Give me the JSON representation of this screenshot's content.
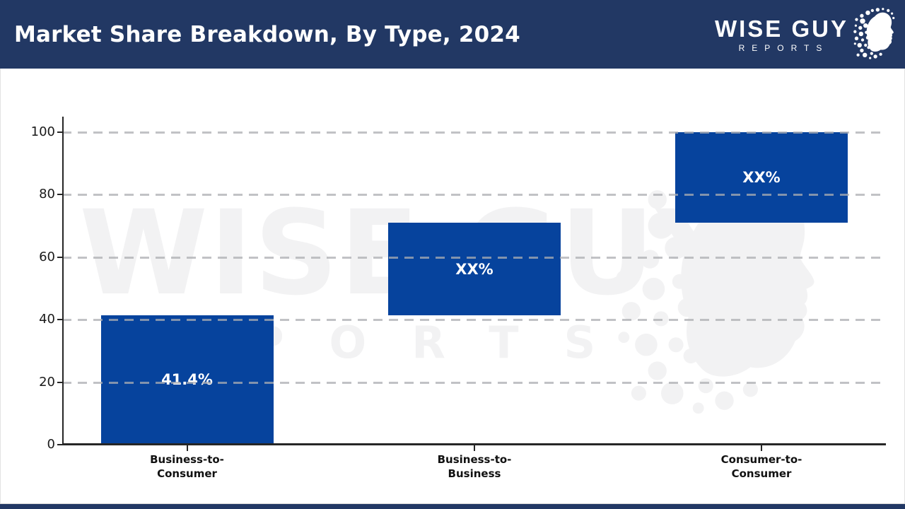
{
  "header": {
    "title": "Market Share Breakdown, By Type, 2024",
    "bg_color": "#223864",
    "logo": {
      "brand": "WISE GUY",
      "sub": "REPORTS"
    }
  },
  "watermark": {
    "brand": "WISE GUY",
    "sub": "REPORTS"
  },
  "chart_data": {
    "type": "bar",
    "variant": "waterfall-floating-segments",
    "title": "Market Share Breakdown, By Type, 2024",
    "categories": [
      "Business-to-Consumer",
      "Business-to-Business",
      "Consumer-to-Consumer"
    ],
    "category_label_lines": [
      [
        "Business-to-",
        "Consumer"
      ],
      [
        "Business-to-",
        "Business"
      ],
      [
        "Consumer-to-",
        "Consumer"
      ]
    ],
    "segments": [
      {
        "category": "Business-to-Consumer",
        "start": 0,
        "end": 41.4,
        "label": "41.4%"
      },
      {
        "category": "Business-to-Business",
        "start": 41.4,
        "end": 71,
        "label": "XX%"
      },
      {
        "category": "Consumer-to-Consumer",
        "start": 71,
        "end": 100,
        "label": "XX%"
      }
    ],
    "ylim": [
      0,
      100
    ],
    "yticks": [
      0,
      20,
      40,
      60,
      80,
      100
    ],
    "xlabel": "",
    "ylabel": "",
    "grid": "horizontal-dashed",
    "legend": "none",
    "bar_color": "#06439d",
    "bar_label_color": "#ffffff",
    "axis_color": "#262626",
    "tick_label_color": "#1a1a1a"
  }
}
